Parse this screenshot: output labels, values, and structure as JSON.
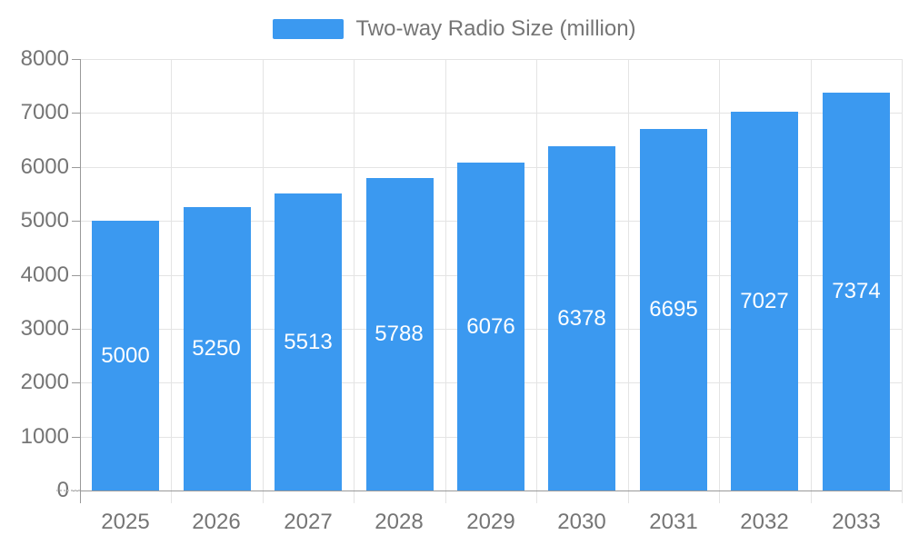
{
  "chart_data": {
    "type": "bar",
    "title": "Two-way Radio Size (million)",
    "legend": {
      "label": "Two-way Radio Size (million)",
      "position": "top"
    },
    "categories": [
      "2025",
      "2026",
      "2027",
      "2028",
      "2029",
      "2030",
      "2031",
      "2032",
      "2033"
    ],
    "values": [
      5000,
      5250,
      5513,
      5788,
      6076,
      6378,
      6695,
      7027,
      7374
    ],
    "xlabel": "",
    "ylabel": "",
    "ylim": [
      0,
      8000
    ],
    "ytick_step": 1000,
    "yticks": [
      "0",
      "1000",
      "2000",
      "3000",
      "4000",
      "5000",
      "6000",
      "7000",
      "8000"
    ],
    "grid": true,
    "value_labels_position": "inside-center",
    "colors": {
      "bar": "#3b99f0",
      "grid": "#e4e4e4",
      "axis": "#999999",
      "tick_text": "#757575",
      "value_label": "#ffffff",
      "background": "#ffffff"
    }
  }
}
